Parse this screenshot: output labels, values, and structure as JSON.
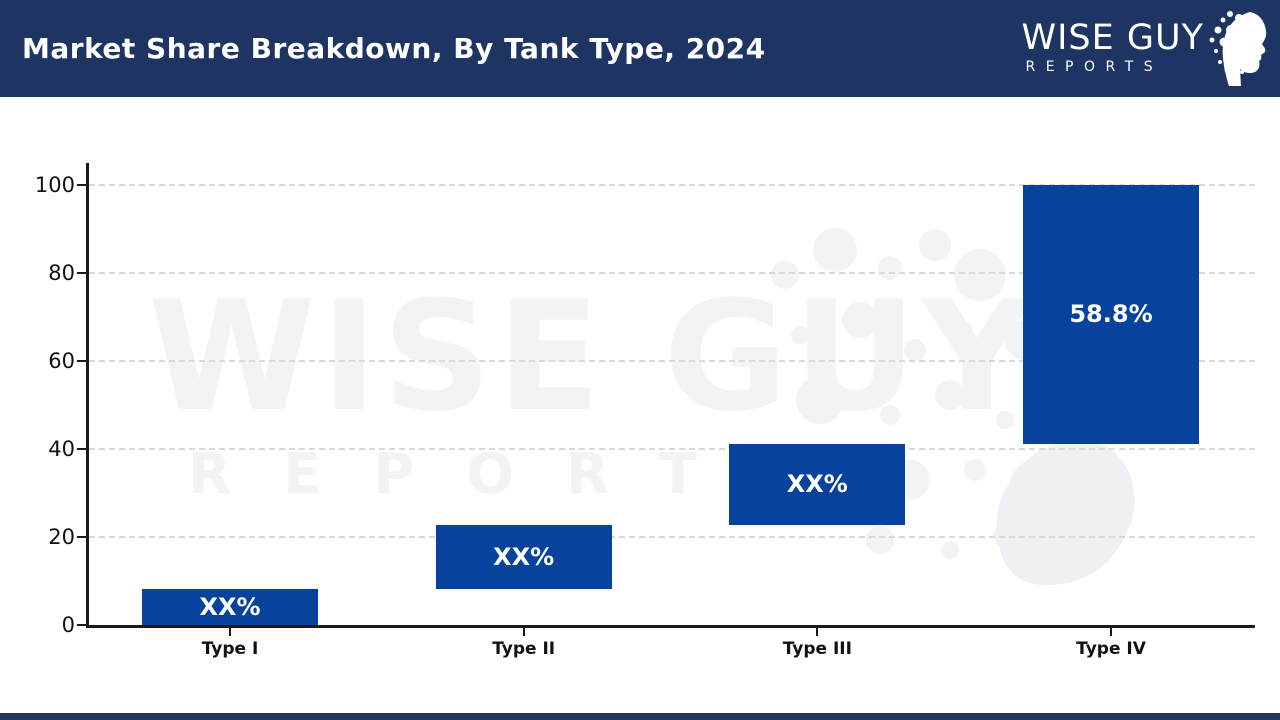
{
  "header": {
    "title": "Market Share Breakdown, By Tank Type, 2024",
    "logo": {
      "brand_top": "WISE GUY",
      "brand_bottom": "REPORTS"
    }
  },
  "watermark": {
    "line1": "WISE GUY",
    "line2": "REPORTS"
  },
  "chart_data": {
    "type": "bar",
    "subtype": "waterfall",
    "title": "Market Share Breakdown, By Tank Type, 2024",
    "xlabel": "",
    "ylabel": "",
    "categories": [
      "Type I",
      "Type II",
      "Type III",
      "Type IV"
    ],
    "segments": [
      {
        "category": "Type I",
        "start": 0,
        "end": 8.1,
        "label": "XX%"
      },
      {
        "category": "Type II",
        "start": 8.1,
        "end": 22.8,
        "label": "XX%"
      },
      {
        "category": "Type III",
        "start": 22.8,
        "end": 41.2,
        "label": "XX%"
      },
      {
        "category": "Type IV",
        "start": 41.2,
        "end": 100,
        "label": "58.8%"
      }
    ],
    "yticks": [
      0,
      20,
      40,
      60,
      80,
      100
    ],
    "ylim": [
      0,
      105
    ],
    "grid": true,
    "gridline_style": "dashed",
    "legend": "none",
    "bar_color": "#07429c",
    "bar_label_color": "#ffffff"
  },
  "colors": {
    "header_bg": "#1e3563",
    "footer_bg": "#1e3563",
    "bar": "#07429c",
    "grid": "#d9d9d9",
    "axis": "#1a1a1a",
    "watermark": "#f2f3f5",
    "background": "#ffffff"
  }
}
